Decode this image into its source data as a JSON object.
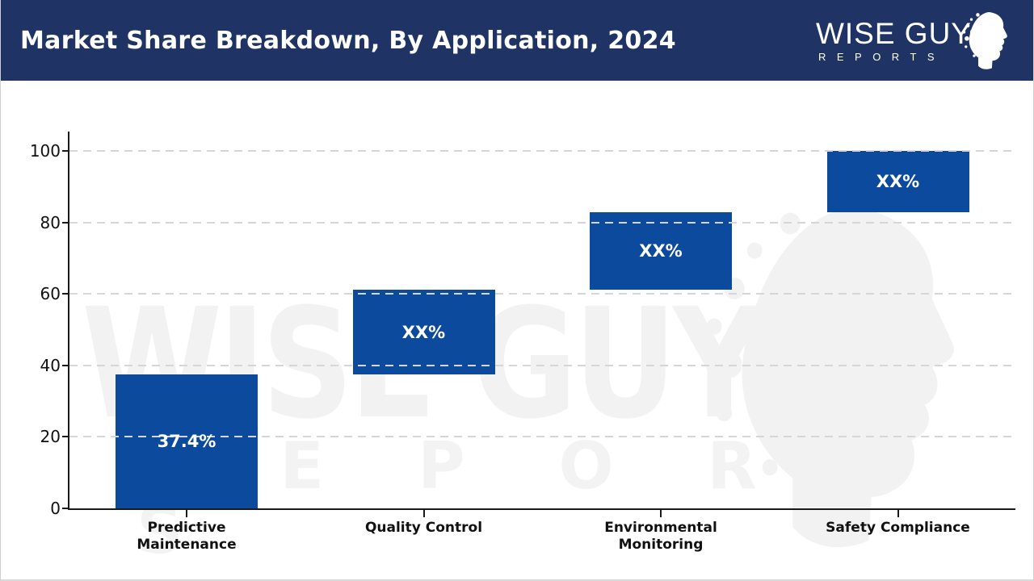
{
  "header": {
    "title": "Market Share Breakdown, By Application, 2024",
    "logo": {
      "line1": "WISE GUY",
      "line2": "REPORTS"
    },
    "bg_color": "#1f3464"
  },
  "watermark": {
    "line1": "WISE GUY",
    "line2": "R E P O R T S"
  },
  "chart_data": {
    "type": "bar",
    "variant": "stacked-waterfall",
    "title": "Market Share Breakdown, By Application, 2024",
    "categories": [
      "Predictive Maintenance",
      "Quality Control",
      "Environmental Monitoring",
      "Safety Compliance"
    ],
    "category_display": [
      "Predictive\nMaintenance",
      "Quality Control",
      "Environmental\nMonitoring",
      "Safety Compliance"
    ],
    "segments": [
      {
        "category": "Predictive Maintenance",
        "start": 0,
        "end": 37.4,
        "label": "37.4%"
      },
      {
        "category": "Quality Control",
        "start": 37.4,
        "end": 61.1,
        "label": "XX%"
      },
      {
        "category": "Environmental Monitoring",
        "start": 61.1,
        "end": 82.8,
        "label": "XX%"
      },
      {
        "category": "Safety Compliance",
        "start": 82.8,
        "end": 100,
        "label": "XX%"
      }
    ],
    "xlabel": "",
    "ylabel": "",
    "ylim": [
      0,
      106
    ],
    "yticks": [
      0,
      20,
      40,
      60,
      80,
      100
    ],
    "grid": true,
    "grid_style": "dashed",
    "legend": false,
    "bar_color": "#0c4a9e",
    "bar_label_color": "#ffffff",
    "axis_color": "#1a1a1a"
  }
}
